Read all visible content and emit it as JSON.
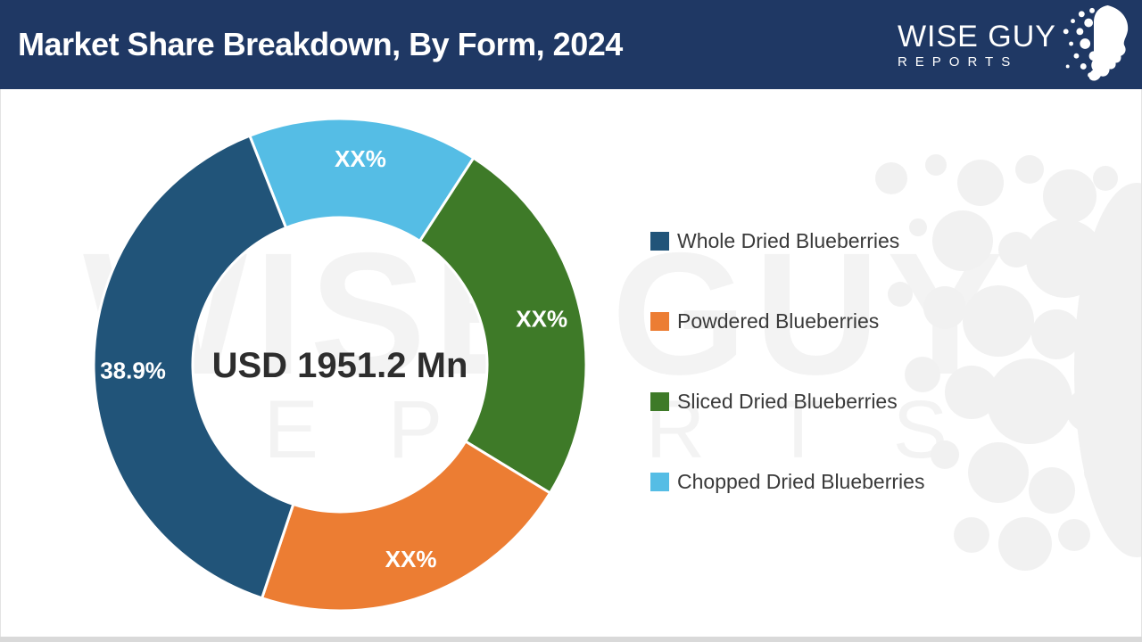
{
  "header": {
    "title": "Market Share Breakdown, By Form, 2024",
    "logo": {
      "name": "WISE GUY",
      "sub": "REPORTS"
    }
  },
  "colors": {
    "header_bg": "#1F3864",
    "whole_blue": "#215479",
    "powdered_orange": "#EC7D33",
    "sliced_green": "#3E7A28",
    "chopped_lightblue": "#55BDE5",
    "watermark_gray": "#F3F3F3",
    "bottom_bar_gray": "#D9D9D9",
    "center_text": "#2D2D2D"
  },
  "watermark": {
    "line1": "WISE GUY",
    "line2": "REPORTS"
  },
  "chart_data": {
    "type": "pie",
    "subtype": "donut",
    "title": "Market Share Breakdown, By Form, 2024",
    "center_label": "USD 1951.2 Mn",
    "start_angle_deg": -21.5,
    "clockwise": true,
    "donut_hole_ratio": 0.6,
    "legend_position": "right",
    "slices": [
      {
        "key": "chopped",
        "name": "Chopped Dried Blueberries",
        "percent": 15.1,
        "display_label": "XX%",
        "color": "#55BDE5"
      },
      {
        "key": "sliced",
        "name": "Sliced Dried Blueberries",
        "percent": 24.6,
        "display_label": "XX%",
        "color": "#3E7A28"
      },
      {
        "key": "powdered",
        "name": "Powdered Blueberries",
        "percent": 21.4,
        "display_label": "XX%",
        "color": "#EC7D33"
      },
      {
        "key": "whole",
        "name": "Whole Dried Blueberries",
        "percent": 38.9,
        "display_label": "38.9%",
        "color": "#215479"
      }
    ],
    "legend": [
      {
        "label": "Whole Dried Blueberries",
        "color": "#215479"
      },
      {
        "label": "Powdered Blueberries",
        "color": "#EC7D33"
      },
      {
        "label": "Sliced Dried Blueberries",
        "color": "#3E7A28"
      },
      {
        "label": "Chopped Dried Blueberries",
        "color": "#55BDE5"
      }
    ]
  }
}
